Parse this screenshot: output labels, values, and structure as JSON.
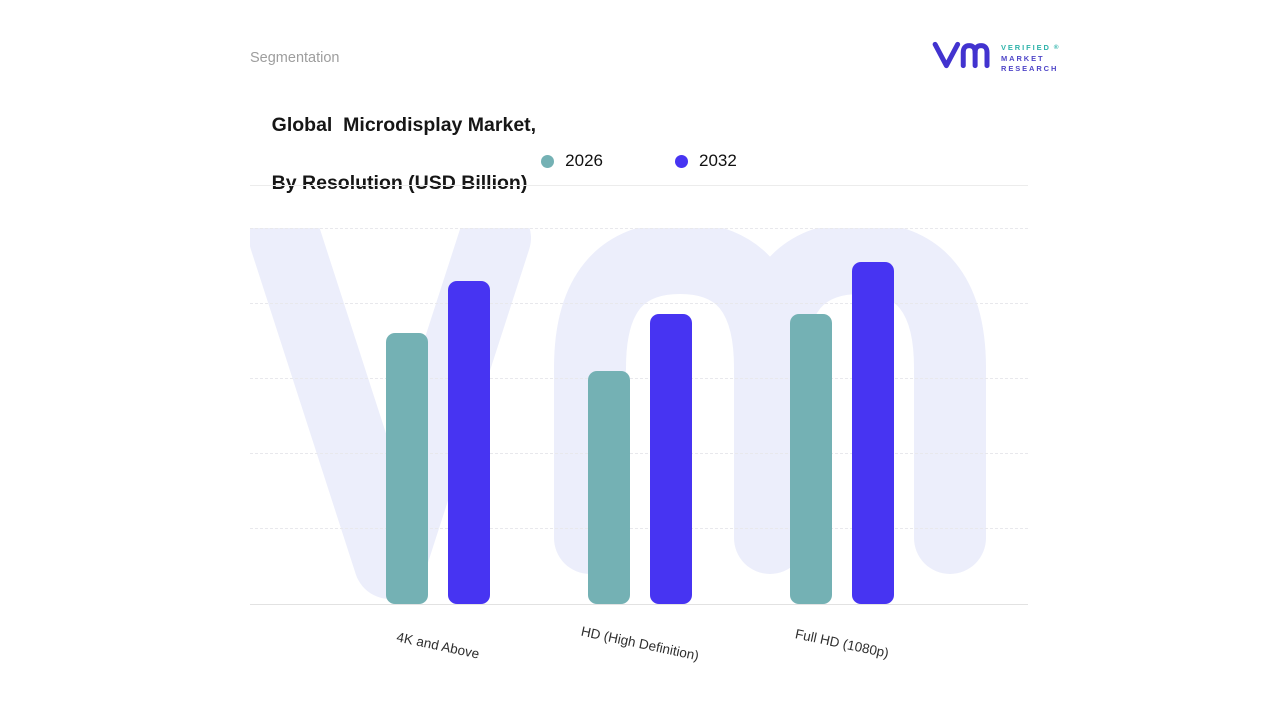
{
  "page": {
    "eyebrow": "Segmentation",
    "title_line1": "Global  Microdisplay Market,",
    "title_line2": "By Resolution (USD Billion)"
  },
  "logo": {
    "line1": "VERIFIED",
    "line2": "MARKET",
    "line3": "RESEARCH",
    "registered": "®",
    "mark_color": "#4233cf",
    "teal_color": "#2fb3ab",
    "indigo_color": "#4f46c8"
  },
  "chart_data": {
    "type": "bar",
    "title": "Global Microdisplay Market, By Resolution (USD Billion)",
    "categories": [
      "4K and Above",
      "HD (High Definition)",
      "Full HD (1080p)"
    ],
    "series": [
      {
        "name": "2026",
        "color": "#74b1b4",
        "values": [
          7.2,
          6.2,
          7.7
        ]
      },
      {
        "name": "2032",
        "color": "#4734f2",
        "values": [
          8.6,
          7.7,
          9.1
        ]
      }
    ],
    "xlabel": "",
    "ylabel": "",
    "ylim": [
      0,
      10
    ],
    "grid": "dashed horizontal gridlines, no numeric axis labels",
    "legend_position": "top center",
    "watermark_color": "#eceefb"
  }
}
